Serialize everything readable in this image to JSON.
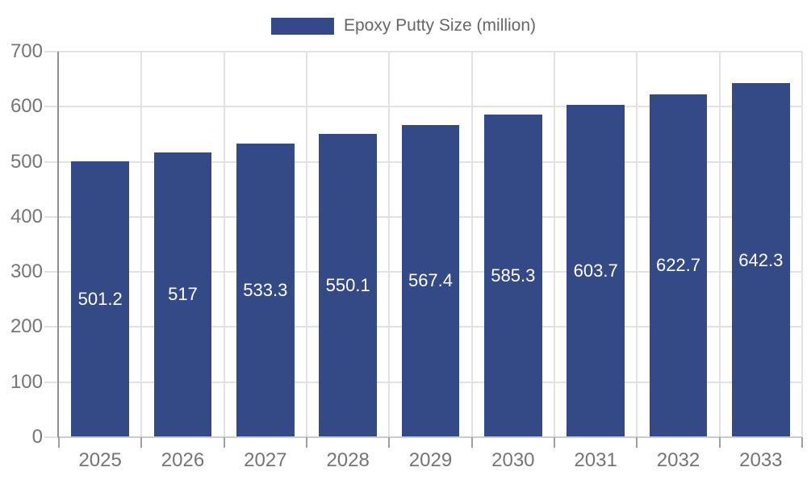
{
  "chart_data": {
    "type": "bar",
    "legend_label": "Epoxy Putty Size (million)",
    "categories": [
      "2025",
      "2026",
      "2027",
      "2028",
      "2029",
      "2030",
      "2031",
      "2032",
      "2033"
    ],
    "values": [
      501.2,
      517,
      533.3,
      550.1,
      567.4,
      585.3,
      603.7,
      622.7,
      642.3
    ],
    "value_labels": [
      "501.2",
      "517",
      "533.3",
      "550.1",
      "567.4",
      "585.3",
      "603.7",
      "622.7",
      "642.3"
    ],
    "ylim": [
      0,
      700
    ],
    "y_ticks": [
      0,
      100,
      200,
      300,
      400,
      500,
      600,
      700
    ],
    "grid": true,
    "legend_position": "top-center",
    "bar_width_fraction": 0.7,
    "colors": {
      "bar": "#344A86",
      "bar_label_text": "#ffffff",
      "axis_text": "#757575",
      "legend_text": "#666666",
      "grid_line": "#e2e2e2",
      "y_axis_line": "#8f8f8f",
      "x_axis_line": "#cccccc",
      "tick": "#9e9e9e"
    }
  }
}
